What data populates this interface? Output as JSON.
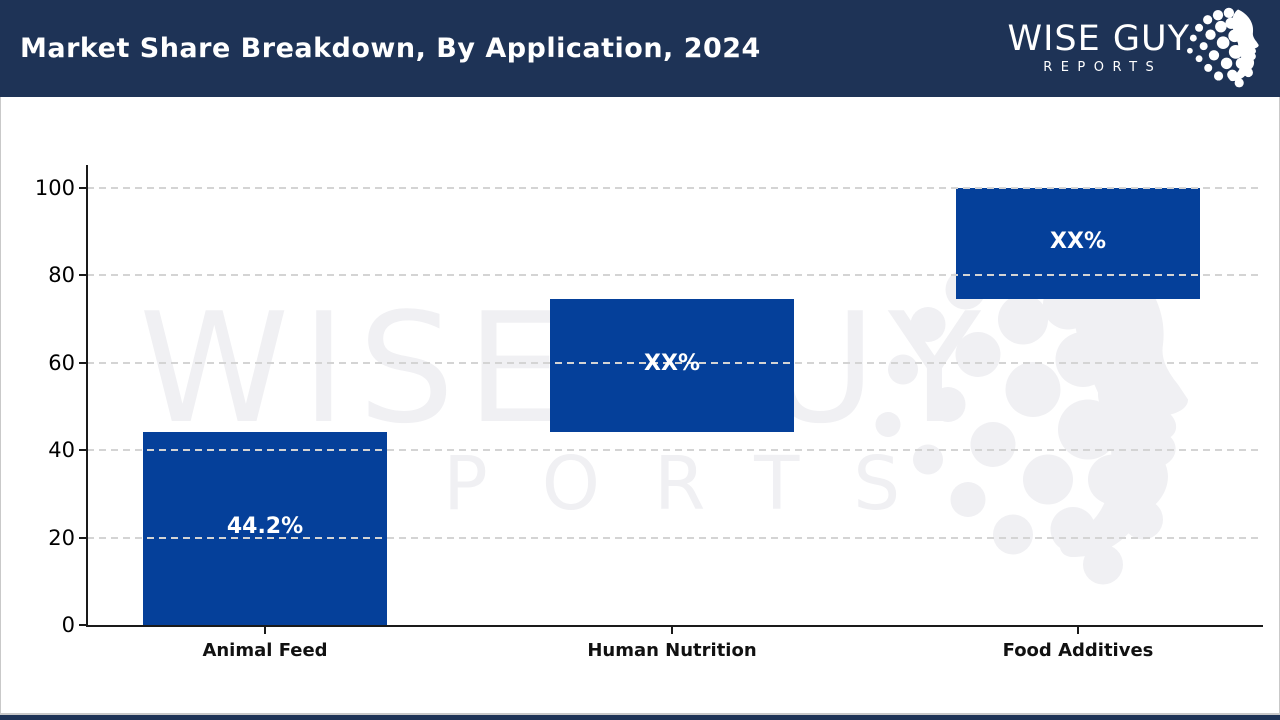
{
  "header": {
    "title": "Market Share Breakdown, By Application, 2024",
    "logo": {
      "line1": "WISE GUY",
      "line2": "REPORTS"
    }
  },
  "watermark": {
    "line1": "WISE GUY",
    "line2": "REPORTS"
  },
  "chart_data": {
    "type": "bar",
    "variant": "waterfall",
    "title": "Market Share Breakdown, By Application, 2024",
    "categories": [
      "Animal Feed",
      "Human Nutrition",
      "Food Additives"
    ],
    "bar_labels": [
      "44.2%",
      "XX%",
      "XX%"
    ],
    "segments": [
      {
        "start": 0,
        "end": 44.2
      },
      {
        "start": 44.2,
        "end": 74.6
      },
      {
        "start": 74.6,
        "end": 100
      }
    ],
    "values_pct": [
      44.2,
      30.4,
      25.4
    ],
    "yticks": [
      0,
      20,
      40,
      60,
      80,
      100
    ],
    "ylim": [
      0,
      105
    ],
    "xlabel": "",
    "ylabel": "",
    "grid": "horizontal-dashed",
    "legend": "none"
  },
  "colors": {
    "header_bg": "#1e3356",
    "footer_bg": "#1e3356",
    "bar": "#05409a",
    "grid": "#d4d4d4",
    "axis": "#1a1a1a",
    "bar_label_text": "#ffffff",
    "watermark": "#f0f0f3",
    "frame_border": "#c9c9c9"
  }
}
